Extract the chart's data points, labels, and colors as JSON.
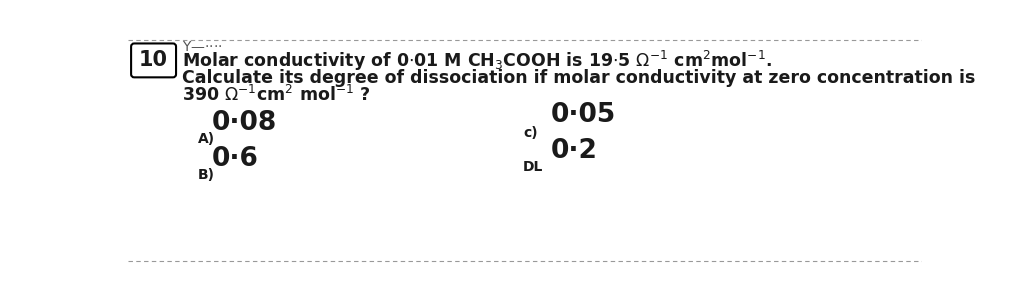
{
  "background_color": "#ffffff",
  "question_number": "10",
  "line1": "Molar conductivity of 0·01 M CH$_3$COOH is 19·5 $\\Omega^{-1}$ cm$^2$mol$^{-1}$.",
  "line2": "Calculate its degree of dissociation if molar conductivity at zero concentration is",
  "line3": "390 $\\Omega^{-1}$cm$^2$ mol$^{-1}$ ?",
  "option_a_label": "A)",
  "option_a_value": "0·08",
  "option_b_label": "B)",
  "option_b_value": "0·6",
  "option_c_label": "c)",
  "option_c_value": "0·05",
  "option_d_label": "DL",
  "option_d_value": "0·2",
  "text_color": "#1a1a1a",
  "dashed_border_color": "#999999",
  "font_size_main": 12.5,
  "font_size_options": 19,
  "font_size_option_labels": 10,
  "font_size_number": 15,
  "font_size_scribble": 10
}
